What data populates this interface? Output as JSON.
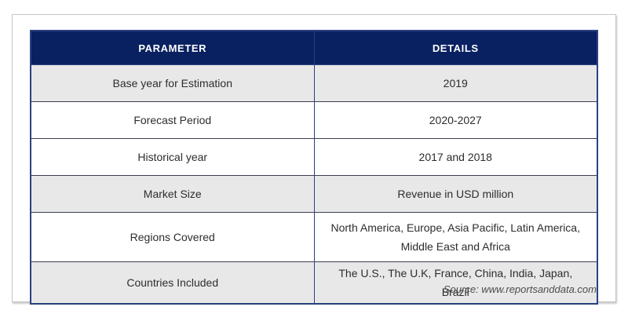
{
  "table": {
    "columns": [
      "PARAMETER",
      "DETAILS"
    ],
    "rows": [
      {
        "parameter": "Base year for Estimation",
        "details": "2019"
      },
      {
        "parameter": "Forecast Period",
        "details": "2020-2027"
      },
      {
        "parameter": "Historical year",
        "details": "2017 and 2018"
      },
      {
        "parameter": "Market Size",
        "details": "Revenue in USD million"
      },
      {
        "parameter": "Regions Covered",
        "details": "North America, Europe, Asia Pacific, Latin America, Middle East and Africa"
      },
      {
        "parameter": "Countries Included",
        "details": "The U.S., The U.K, France, China, India, Japan, Brazil"
      }
    ]
  },
  "source": "Source: www.reportsanddata.com",
  "colors": {
    "header_bg": "#0a2161",
    "row_alt_bg": "#e8e8e8",
    "border_navy": "#2b4180"
  }
}
